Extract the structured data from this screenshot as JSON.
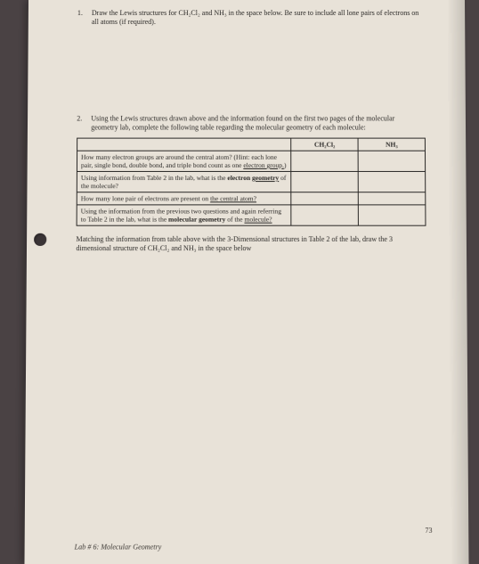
{
  "q1": {
    "num": "1.",
    "text": "Draw the Lewis structures for CH₂Cl₂ and NH₃ in the space below. Be sure to include all lone pairs of electrons on all atoms (if required)."
  },
  "q2": {
    "num": "2.",
    "text": "Using the Lewis structures drawn above and the information found on the first two pages of the molecular geometry lab, complete the following table regarding the molecular geometry of each molecule:"
  },
  "table": {
    "headers": [
      "",
      "CH₂Cl₂",
      "NH₃"
    ],
    "rows": [
      "How many electron groups are around the central atom? (Hint: each lone pair, single bond, double bond, and triple bond count as one electron group.)",
      "Using information from Table 2 in the lab, what is the electron geometry of the molecule?",
      "How many lone pair of electrons are present on the central atom?",
      "Using the information from the previous two questions and again referring to Table 2 in the lab, what is the molecular geometry of the molecule?"
    ]
  },
  "postTable": "Matching the information from table above with the 3-Dimensional structures in Table 2 of the lab, draw the 3 dimensional structure of CH₂Cl₂ and NH₃ in the space below",
  "footer": {
    "label": "Lab # 6: Molecular Geometry",
    "page": "73"
  },
  "colors": {
    "pageBg": "#e8e2d8",
    "text": "#2a2826",
    "outerBg": "#4a4244"
  }
}
